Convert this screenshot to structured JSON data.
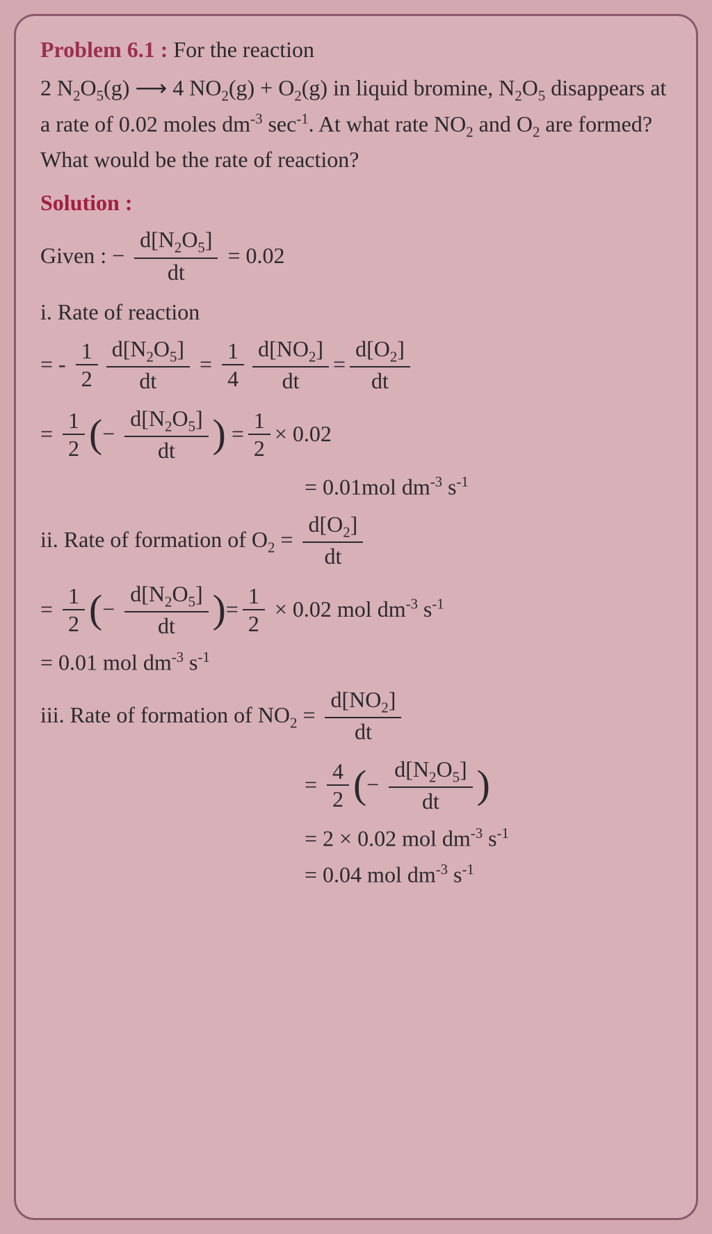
{
  "problem": {
    "label": "Problem 6.1 :",
    "title_rest": " For the reaction",
    "reaction_line": "2 N₂O₅(g) ⟶ 4 NO₂(g) + O₂(g) in liquid bromine, N₂O₅ disappears at a rate of 0.02 moles dm⁻³ sec⁻¹. At what rate NO₂ and O₂ are formed? What would be the rate of reaction?",
    "n2o5_coeff": "2",
    "no2_coeff": "4",
    "rate_value": "0.02",
    "rate_unit": "moles dm⁻³ sec⁻¹"
  },
  "solution": {
    "label": "Solution :",
    "given_label": "Given :",
    "given_value": "0.02"
  },
  "section_i": {
    "heading": "i. Rate of reaction",
    "frac_half_num": "1",
    "frac_half_den": "2",
    "frac_quarter_num": "1",
    "frac_quarter_den": "4",
    "species_n2o5": "d[N₂O₅]",
    "species_no2": "d[NO₂]",
    "species_o2": "d[O₂]",
    "dt": "dt",
    "calc_value": "0.02",
    "result": "= 0.01mol dm⁻³ s⁻¹"
  },
  "section_ii": {
    "heading_prefix": "ii. Rate of formation of O₂ =",
    "species_o2": "d[O₂]",
    "species_n2o5": "d[N₂O₅]",
    "dt": "dt",
    "frac_half_num": "1",
    "frac_half_den": "2",
    "calc_text": "× 0.02 mol dm⁻³ s⁻¹",
    "result": "= 0.01 mol dm⁻³ s⁻¹"
  },
  "section_iii": {
    "heading_prefix": "iii. Rate of formation of NO₂ =",
    "species_no2": "d[NO₂]",
    "species_n2o5": "d[N₂O₅]",
    "dt": "dt",
    "frac_num": "4",
    "frac_den": "2",
    "calc_text": "= 2 × 0.02 mol dm⁻³ s⁻¹",
    "result": "= 0.04 mol dm⁻³ s⁻¹"
  },
  "style": {
    "background_color": "#d8b0b8",
    "border_color": "#8a5a6a",
    "text_color": "#2a2a2a",
    "accent_color": "#9a3050",
    "body_fontsize": 32,
    "font_family": "Georgia, serif"
  }
}
